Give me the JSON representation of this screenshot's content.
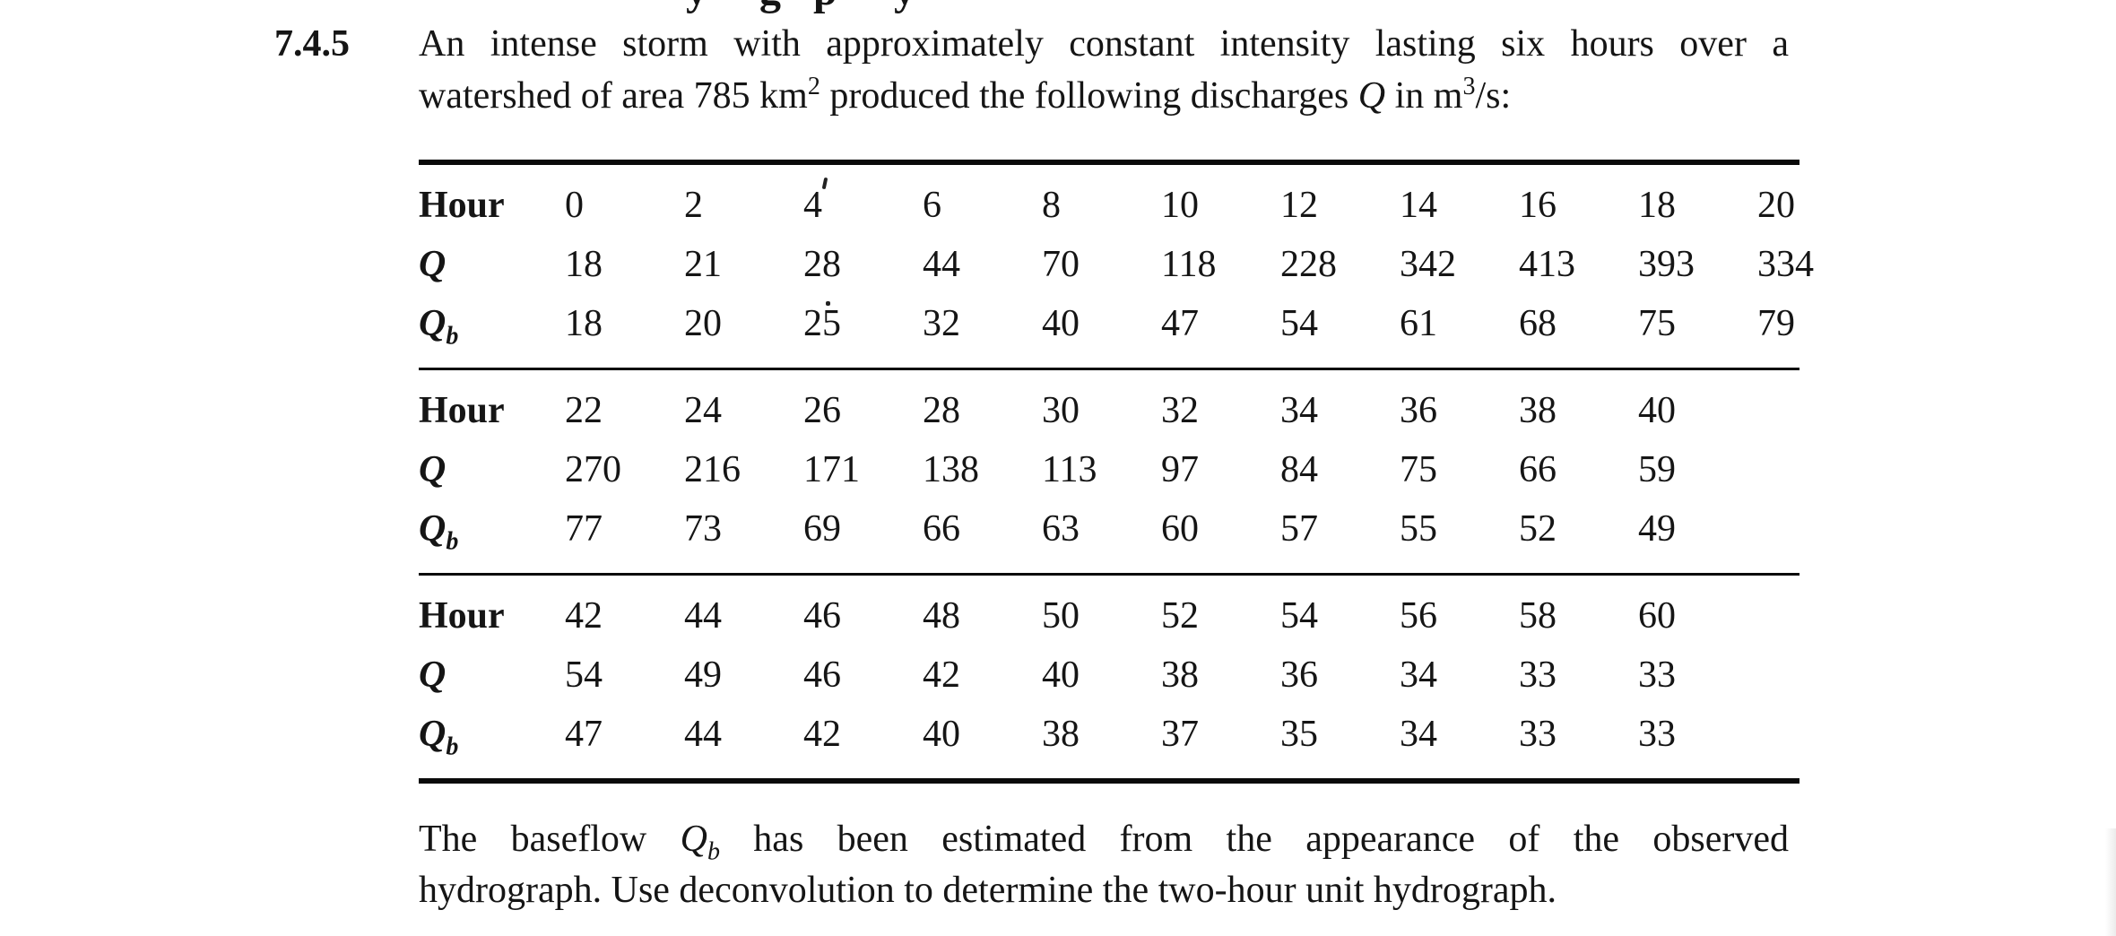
{
  "page": {
    "problem_number": "7.4.5",
    "clipped_fragments": [
      "y",
      "g",
      "p",
      "y"
    ],
    "intro": {
      "line1": "An intense storm with approximately constant intensity lasting six hours over a",
      "line2_a": "watershed of area 785 km",
      "line2_sup1": "2",
      "line2_b": " produced the following discharges ",
      "line2_q": "Q",
      "line2_c": " in m",
      "line2_sup2": "3",
      "line2_d": "/s:"
    },
    "footer": {
      "line1_pre": "The baseflow ",
      "q_symbol": "Q",
      "q_sub": "b",
      "line1_post": " has been estimated from the appearance of the observed",
      "line2": "hydrograph. Use deconvolution to determine the two-hour unit hydrograph."
    }
  },
  "table": {
    "row_labels": {
      "hour": "Hour",
      "q": "Q",
      "qb_main": "Q",
      "qb_sub": "b"
    },
    "blocks": [
      {
        "hours": [
          "0",
          "2",
          "4",
          "6",
          "8",
          "10",
          "12",
          "14",
          "16",
          "18",
          "20"
        ],
        "q": [
          "18",
          "21",
          "28",
          "44",
          "70",
          "118",
          "228",
          "342",
          "413",
          "393",
          "334"
        ],
        "qb": [
          "18",
          "20",
          "25",
          "32",
          "40",
          "47",
          "54",
          "61",
          "68",
          "75",
          "79"
        ]
      },
      {
        "hours": [
          "22",
          "24",
          "26",
          "28",
          "30",
          "32",
          "34",
          "36",
          "38",
          "40"
        ],
        "q": [
          "270",
          "216",
          "171",
          "138",
          "113",
          "97",
          "84",
          "75",
          "66",
          "59"
        ],
        "qb": [
          "77",
          "73",
          "69",
          "66",
          "63",
          "60",
          "57",
          "55",
          "52",
          "49"
        ]
      },
      {
        "hours": [
          "42",
          "44",
          "46",
          "48",
          "50",
          "52",
          "54",
          "56",
          "58",
          "60"
        ],
        "q": [
          "54",
          "49",
          "46",
          "42",
          "40",
          "38",
          "36",
          "34",
          "33",
          "33"
        ],
        "qb": [
          "47",
          "44",
          "42",
          "40",
          "38",
          "37",
          "35",
          "34",
          "33",
          "33"
        ]
      }
    ]
  }
}
